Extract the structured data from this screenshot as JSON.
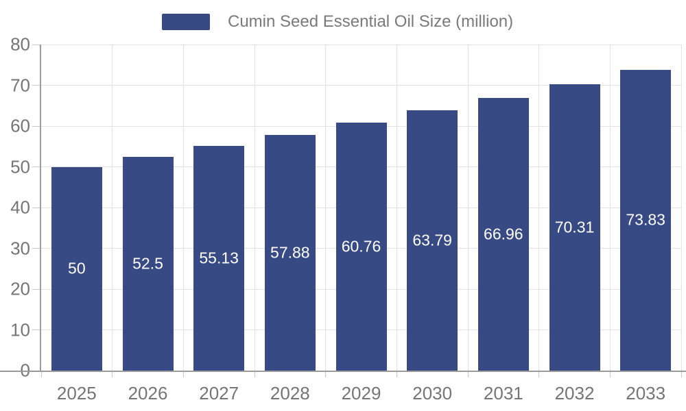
{
  "chart_data": {
    "type": "bar",
    "title": "Cumin Seed Essential Oil Size (million)",
    "categories": [
      "2025",
      "2026",
      "2027",
      "2028",
      "2029",
      "2030",
      "2031",
      "2032",
      "2033"
    ],
    "series": [
      {
        "name": "Cumin Seed Essential Oil Size (million)",
        "values": [
          50,
          52.5,
          55.13,
          57.88,
          60.76,
          63.79,
          66.96,
          70.31,
          73.83
        ],
        "value_labels": [
          "50",
          "52.5",
          "55.13",
          "57.88",
          "60.76",
          "63.79",
          "66.96",
          "70.31",
          "73.83"
        ]
      }
    ],
    "xlabel": "",
    "ylabel": "",
    "ylim": [
      0,
      80
    ],
    "yticks": [
      0,
      10,
      20,
      30,
      40,
      50,
      60,
      70,
      80
    ],
    "grid": true,
    "legend_position": "top",
    "colors": {
      "bar": "#384a84",
      "axis_line": "#9b9b9b",
      "gridline": "#e2e2e2",
      "tick_mark": "#c9c9c9",
      "tick_text": "#757575",
      "value_text": "#ffffff",
      "legend_text": "#7a7a7a"
    }
  }
}
